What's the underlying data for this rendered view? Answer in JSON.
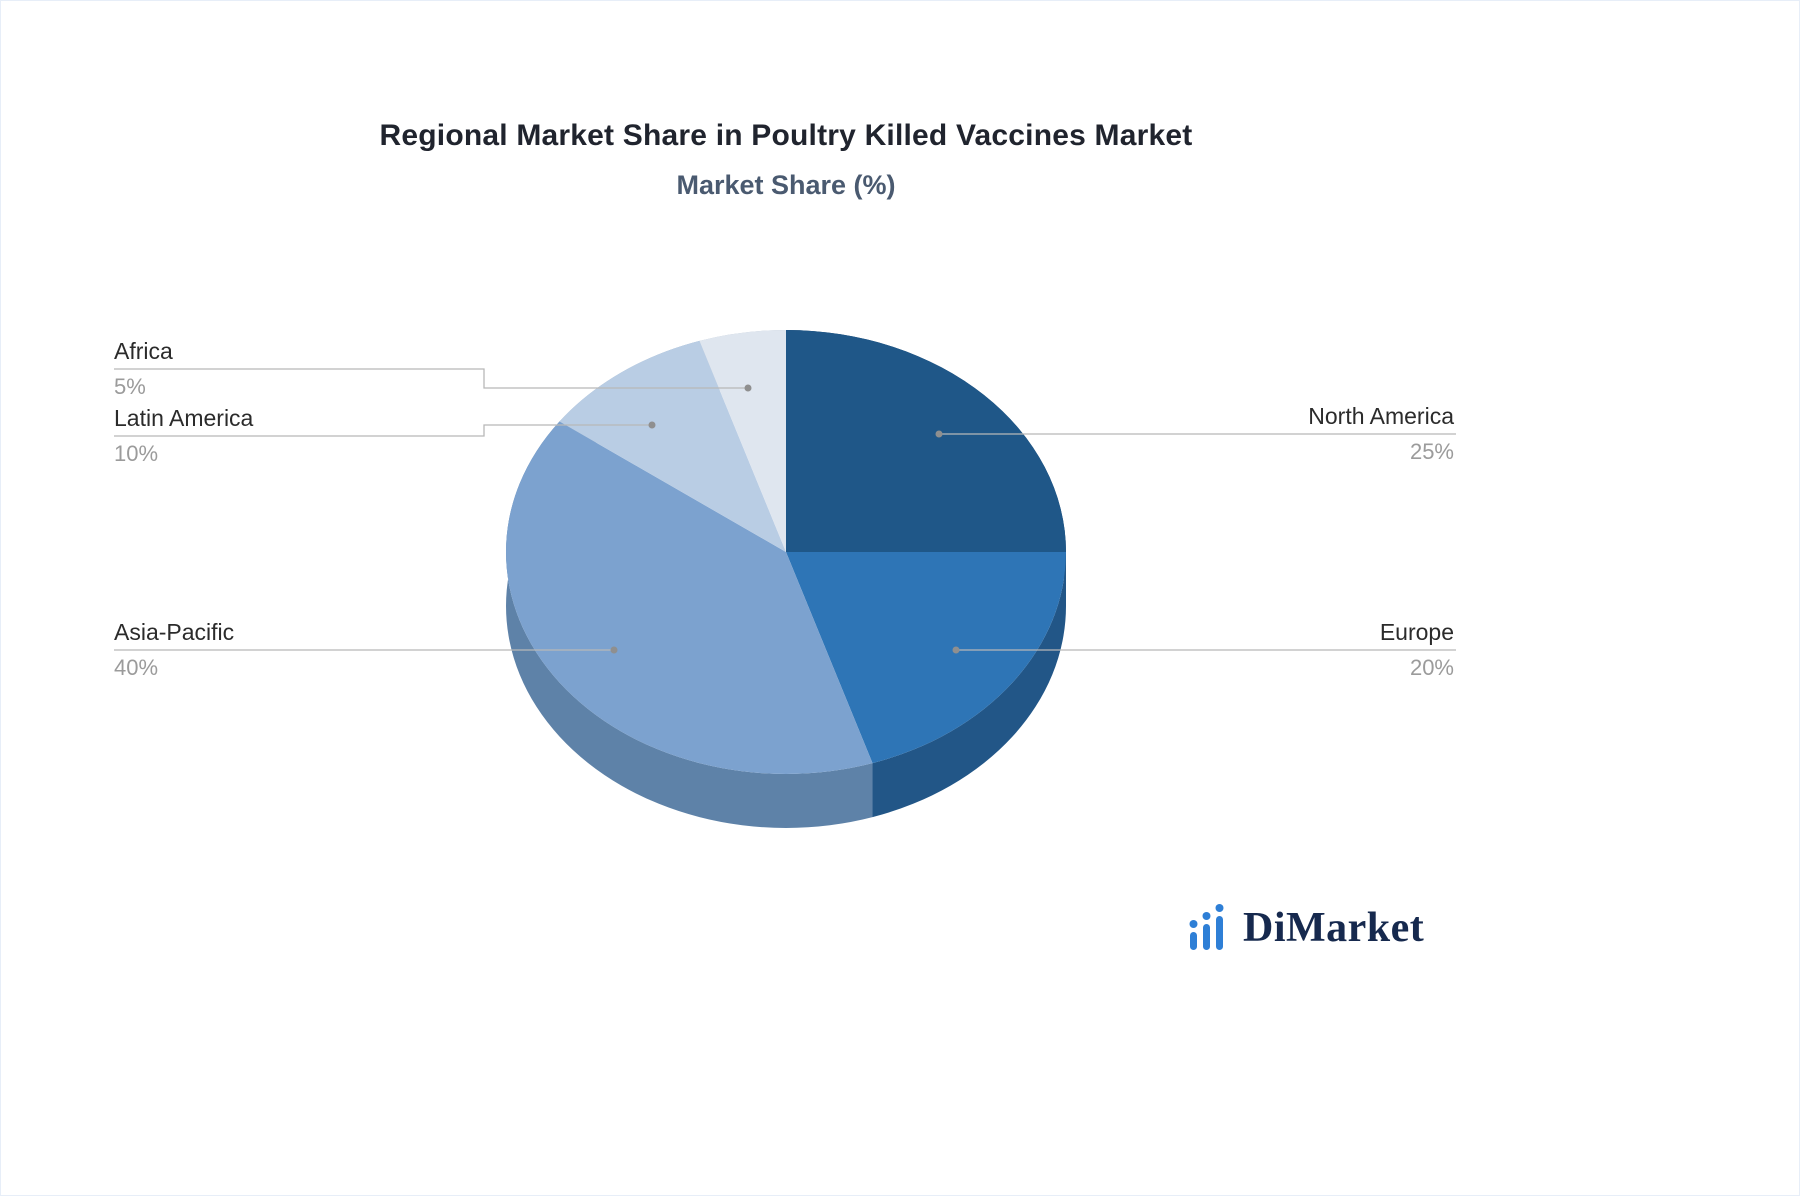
{
  "page": {
    "title": "Regional Market Share in Poultry Killed Vaccines Market",
    "subtitle": "Market Share (%)"
  },
  "chart_data": {
    "type": "pie",
    "title": "Regional Market Share in Poultry Killed Vaccines Market",
    "subtitle": "Market Share (%)",
    "unit": "%",
    "labels": [
      "North America",
      "Europe",
      "Asia-Pacific",
      "Latin America",
      "Africa"
    ],
    "values": [
      25,
      20,
      40,
      10,
      5
    ],
    "colors": [
      "#1F5788",
      "#2E75B6",
      "#7CA2CF",
      "#B9CDE4",
      "#DFE6EF"
    ],
    "side_colors": [
      "#163F66",
      "#225687",
      "#5E82A8",
      "#8FA6C2",
      "#B4BFCD"
    ],
    "start_angle_deg": -90,
    "direction": "clockwise",
    "effect": "3d-depth",
    "legend_position": "callout-labels",
    "grid": false
  },
  "callouts": [
    {
      "label": "Africa",
      "value": "5%"
    },
    {
      "label": "Latin America",
      "value": "10%"
    },
    {
      "label": "Asia-Pacific",
      "value": "40%"
    },
    {
      "label": "North America",
      "value": "25%"
    },
    {
      "label": "Europe",
      "value": "20%"
    }
  ],
  "branding": {
    "logo_text": "DiMarket",
    "icon": "bar-chart-icon",
    "icon_color": "#2E7FD6",
    "text_color": "#16294E"
  }
}
